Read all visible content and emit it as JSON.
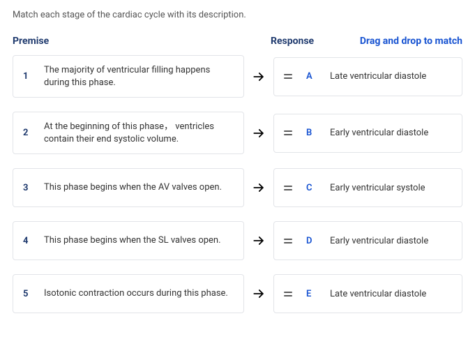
{
  "question": "Match each stage of the cardiac cycle with its description.",
  "headers": {
    "premise": "Premise",
    "response": "Response",
    "drag": "Drag and drop to match"
  },
  "items": [
    {
      "num": "1",
      "premise": "The majority of ventricular filling happens during this phase.",
      "letter": "A",
      "response": "Late ventricular diastole"
    },
    {
      "num": "2",
      "premise": "At the beginning of this phase， ventricles contain their end systolic volume.",
      "letter": "B",
      "response": "Early ventricular diastole"
    },
    {
      "num": "3",
      "premise": "This phase begins when the AV valves open.",
      "letter": "C",
      "response": "Early ventricular systole"
    },
    {
      "num": "4",
      "premise": "This phase begins when the SL valves open.",
      "letter": "D",
      "response": "Early ventricular diastole"
    },
    {
      "num": "5",
      "premise": "Isotonic contraction occurs during this phase.",
      "letter": "E",
      "response": "Late ventricular diastole"
    }
  ]
}
